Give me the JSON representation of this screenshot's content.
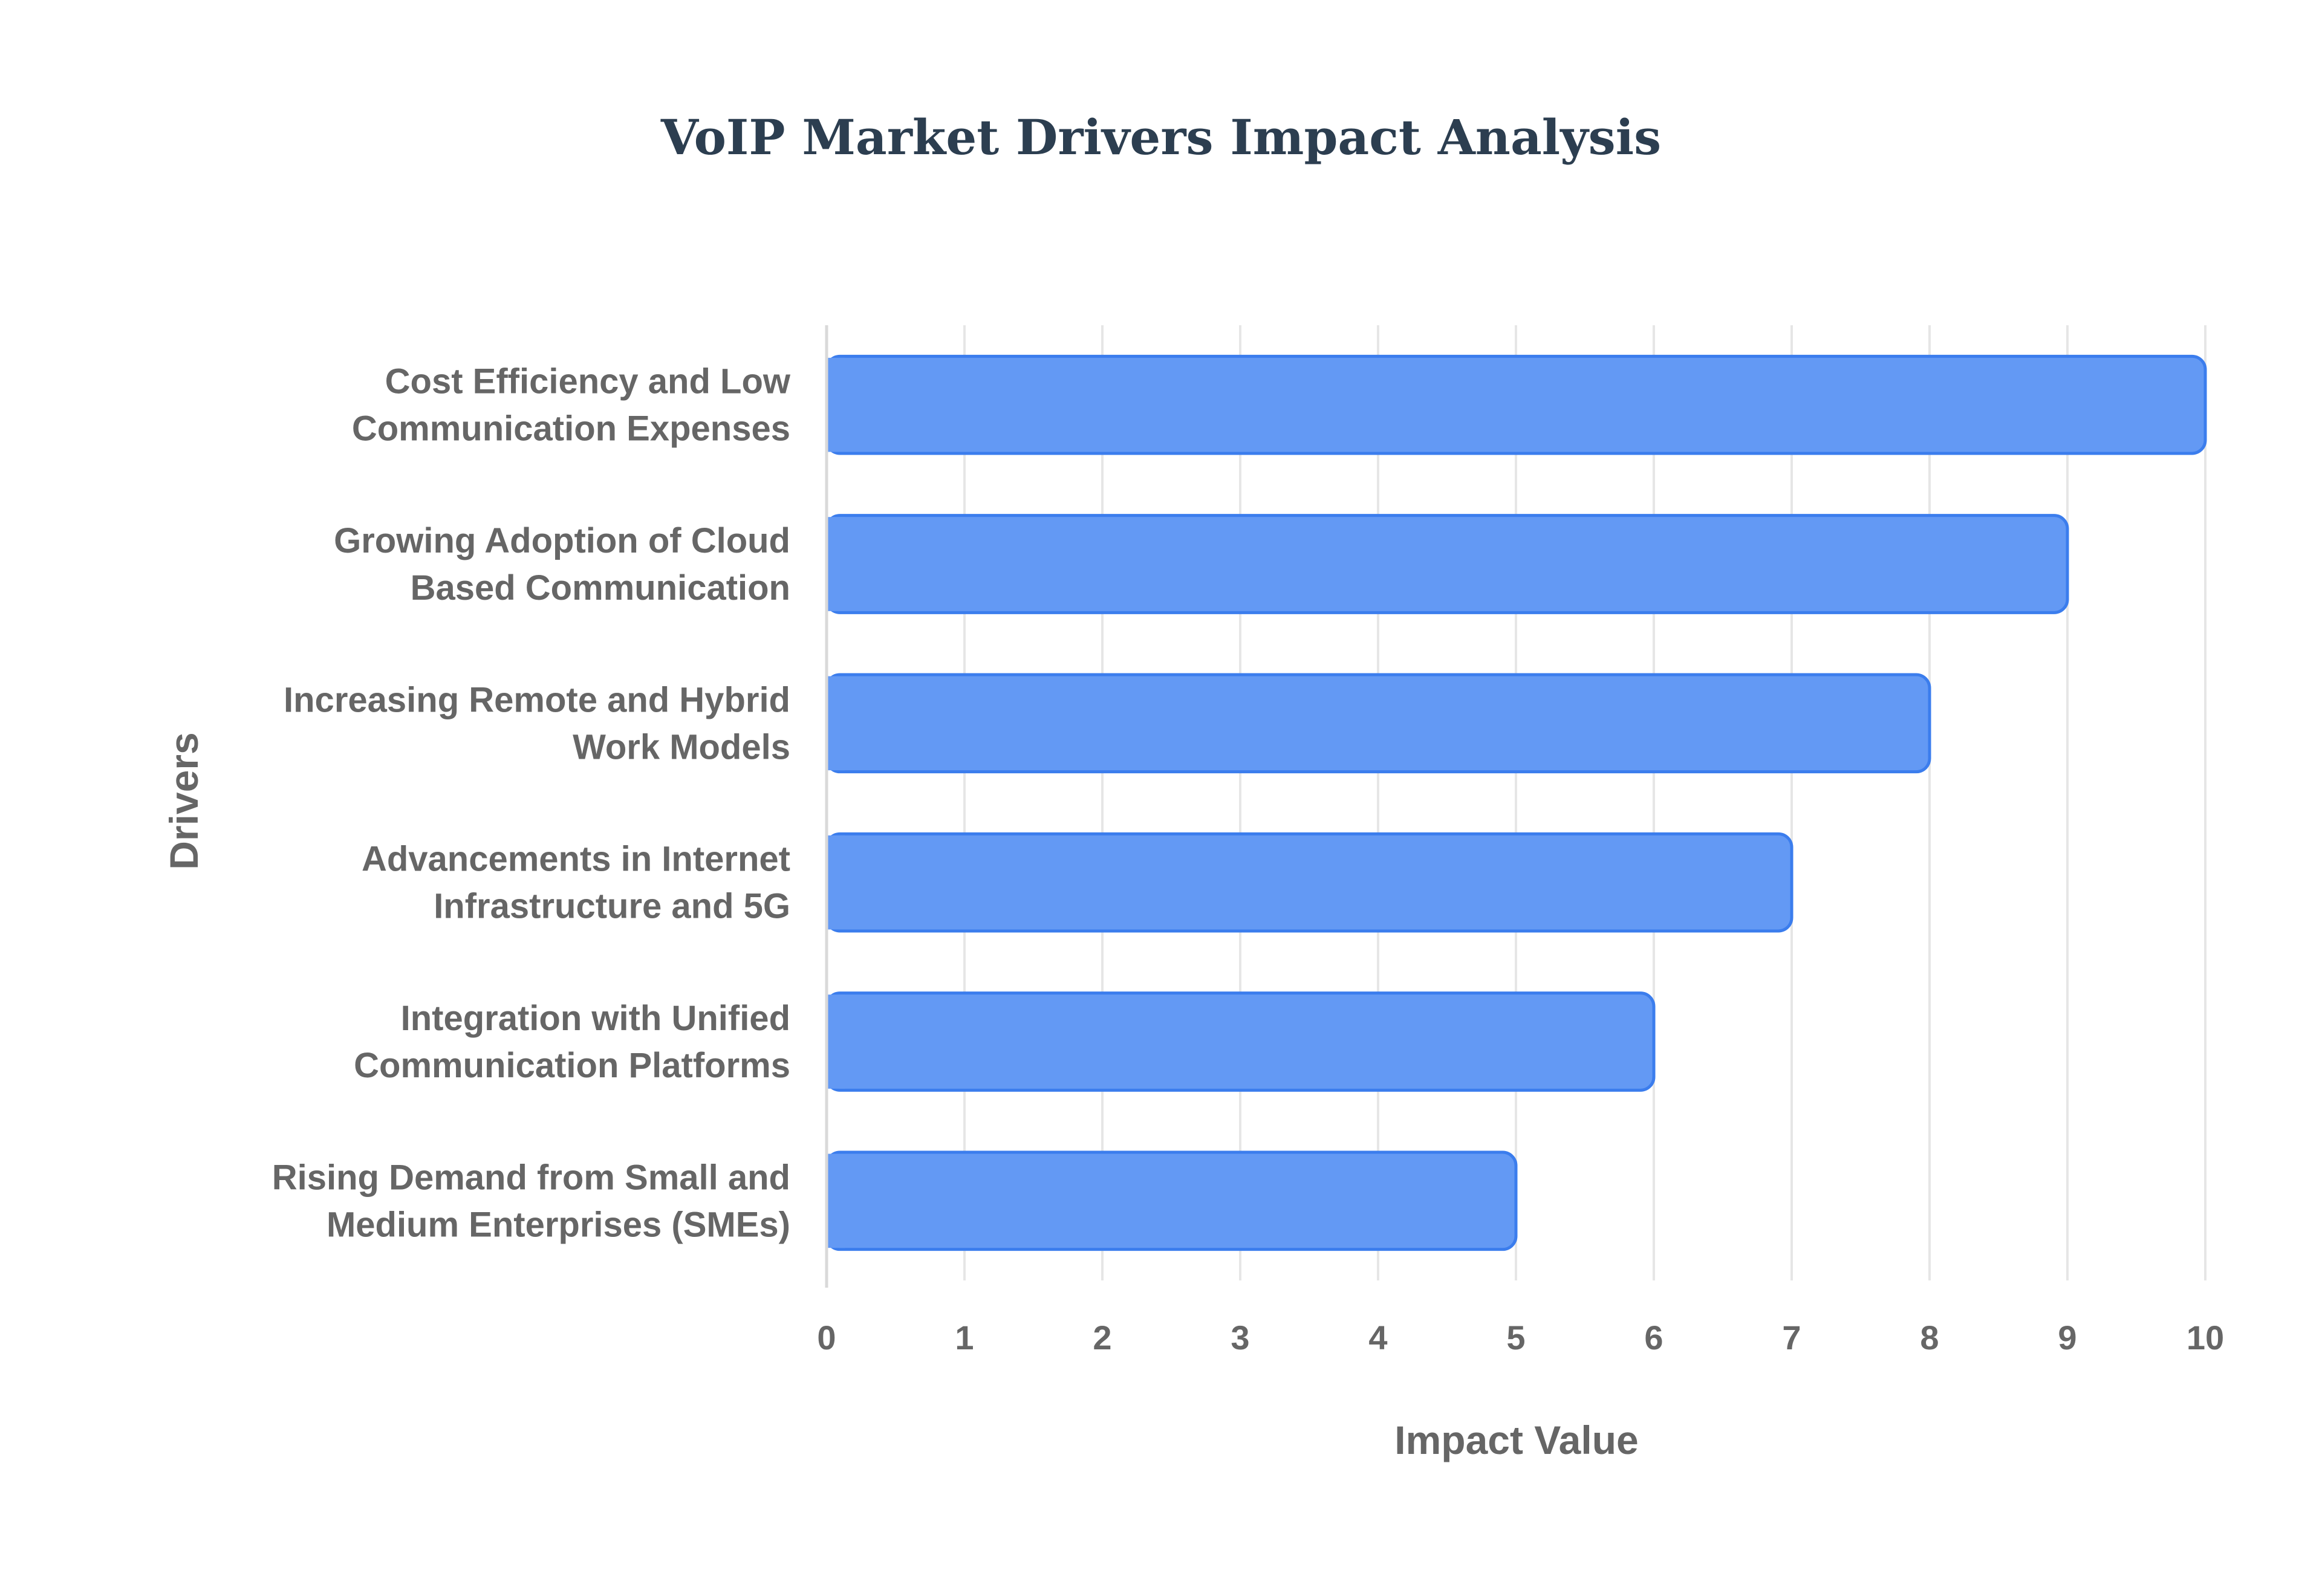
{
  "chart_data": {
    "type": "bar",
    "orientation": "horizontal",
    "title": "VoIP Market Drivers Impact Analysis",
    "xlabel": "Impact Value",
    "ylabel": "Drivers",
    "xlim": [
      0,
      10
    ],
    "x_ticks": [
      "0",
      "1",
      "2",
      "3",
      "4",
      "5",
      "6",
      "7",
      "8",
      "9",
      "10"
    ],
    "grid": true,
    "bar_color": "#6399f4",
    "bar_border_color": "#3b7ded",
    "categories": [
      [
        "Cost Efficiency and Low",
        "Communication Expenses"
      ],
      [
        "Growing Adoption of Cloud",
        "Based Communication"
      ],
      [
        "Increasing Remote and Hybrid",
        "Work Models"
      ],
      [
        "Advancements in Internet",
        "Infrastructure and 5G"
      ],
      [
        "Integration with Unified",
        "Communication Platforms"
      ],
      [
        "Rising Demand from Small and",
        "Medium Enterprises (SMEs)"
      ]
    ],
    "values": [
      10,
      9,
      8,
      7,
      6,
      5
    ]
  }
}
